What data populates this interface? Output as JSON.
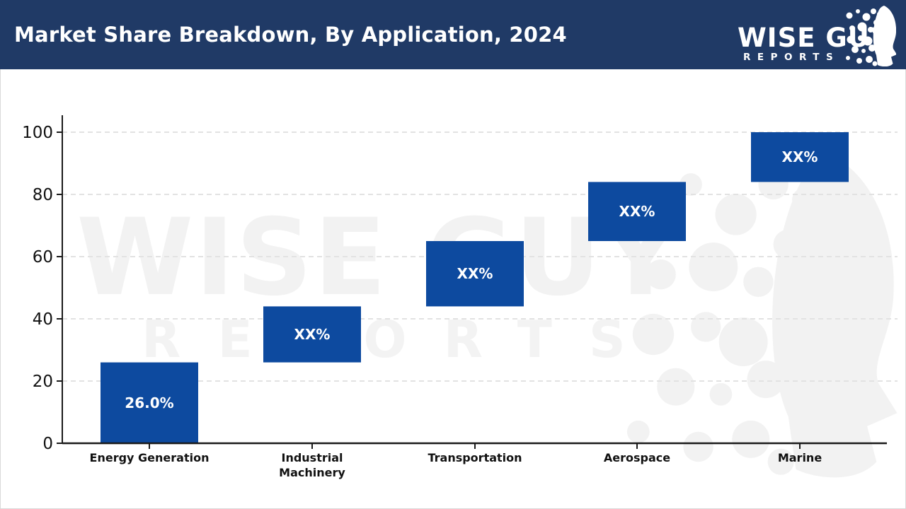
{
  "header": {
    "title": "Market Share Breakdown, By Application, 2024",
    "logo": {
      "line1": "WISE GUY",
      "line2": "REPORTS"
    }
  },
  "watermark": {
    "line1": "WISE GUY",
    "line2": "REPORTS"
  },
  "chart_data": {
    "type": "bar",
    "subtype": "waterfall",
    "title": "Market Share Breakdown, By Application, 2024",
    "xlabel": "",
    "ylabel": "",
    "categories": [
      "Energy Generation",
      "Industrial Machinery",
      "Transportation",
      "Aerospace",
      "Marine"
    ],
    "category_label_lines": [
      [
        "Energy Generation"
      ],
      [
        "Industrial",
        "Machinery"
      ],
      [
        "Transportation"
      ],
      [
        "Aerospace"
      ],
      [
        "Marine"
      ]
    ],
    "segments": [
      {
        "category": "Energy Generation",
        "start": 0,
        "end": 26,
        "label": "26.0%"
      },
      {
        "category": "Industrial Machinery",
        "start": 26,
        "end": 44,
        "label": "XX%"
      },
      {
        "category": "Transportation",
        "start": 44,
        "end": 65,
        "label": "XX%"
      },
      {
        "category": "Aerospace",
        "start": 65,
        "end": 84,
        "label": "XX%"
      },
      {
        "category": "Marine",
        "start": 84,
        "end": 100,
        "label": "XX%"
      }
    ],
    "yticks": [
      0,
      20,
      40,
      60,
      80,
      100
    ],
    "ylim": [
      0,
      105
    ],
    "grid": "horizontal-dashed",
    "legend": "none",
    "colors": {
      "bar": "#0d4a9f",
      "bar_label": "#ffffff",
      "axis": "#1a1a1a",
      "tick_text": "#111111",
      "gridline": "#e2e2e2",
      "header_bg": "#203a66",
      "header_text": "#ffffff",
      "watermark": "#f2f2f2"
    }
  }
}
